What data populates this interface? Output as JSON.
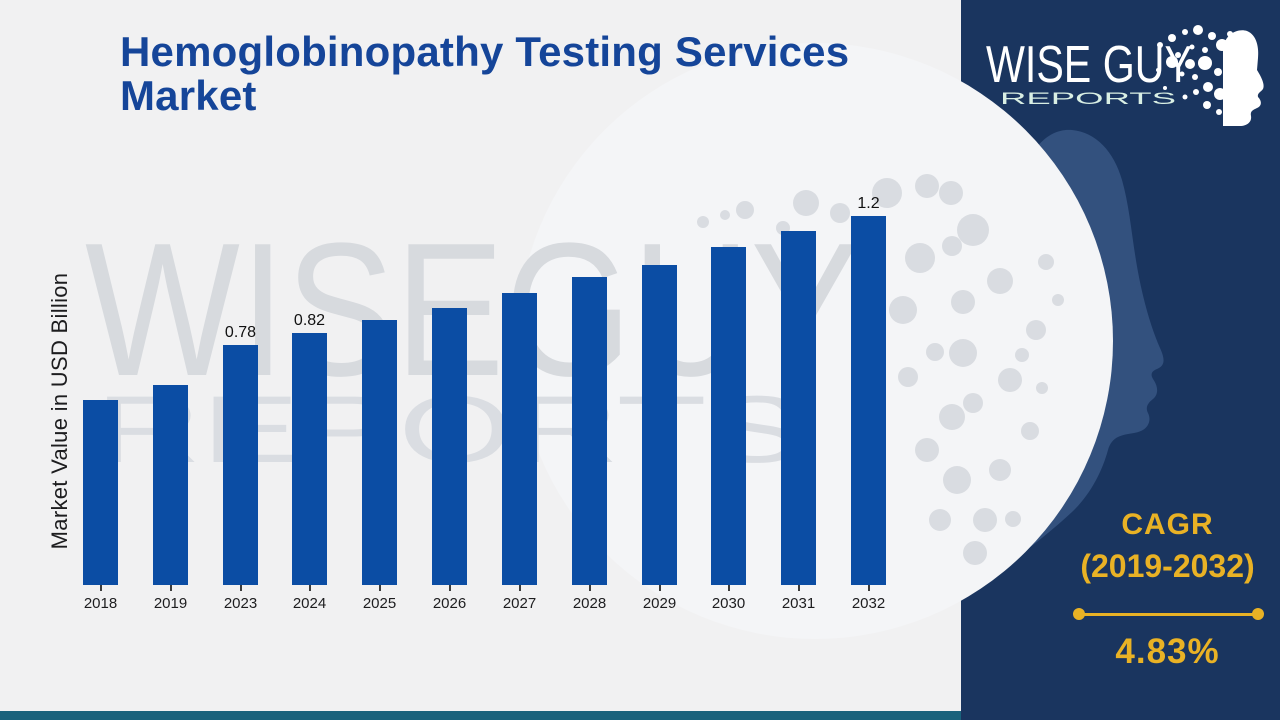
{
  "title": "Hemoglobinopathy Testing Services Market",
  "watermark": {
    "word": "WISEGUY",
    "sub": "REPORTS"
  },
  "logo": {
    "word": "WISE GUY",
    "sub": "REPORTS"
  },
  "cagr": {
    "label": "CAGR",
    "range": "(2019-2032)",
    "value": "4.83%"
  },
  "chart_data": {
    "type": "bar",
    "title": "Hemoglobinopathy Testing Services Market",
    "xlabel": "",
    "ylabel": "Market Value in USD Billion",
    "categories": [
      "2018",
      "2019",
      "2023",
      "2024",
      "2025",
      "2026",
      "2027",
      "2028",
      "2029",
      "2030",
      "2031",
      "2032"
    ],
    "values": [
      0.6,
      0.65,
      0.78,
      0.82,
      0.86,
      0.9,
      0.95,
      1.0,
      1.04,
      1.1,
      1.15,
      1.2
    ],
    "bar_labels": {
      "2023": "0.78",
      "2024": "0.82",
      "2032": "1.2"
    },
    "ylim": [
      0,
      1.3
    ],
    "grid": false,
    "legend": "none"
  },
  "colors": {
    "background": "#f1f1f2",
    "bar": "#0b4da4",
    "title_text": "#154599",
    "panel_navy": "#1a355f",
    "panel_face": "#33517e",
    "accent_gold": "#e9b225",
    "footer_teal": "#1a627c",
    "watermark_gray": "#d7dade",
    "axis_text": "#1d1d1f",
    "circle_fill": "#f4f5f7"
  }
}
